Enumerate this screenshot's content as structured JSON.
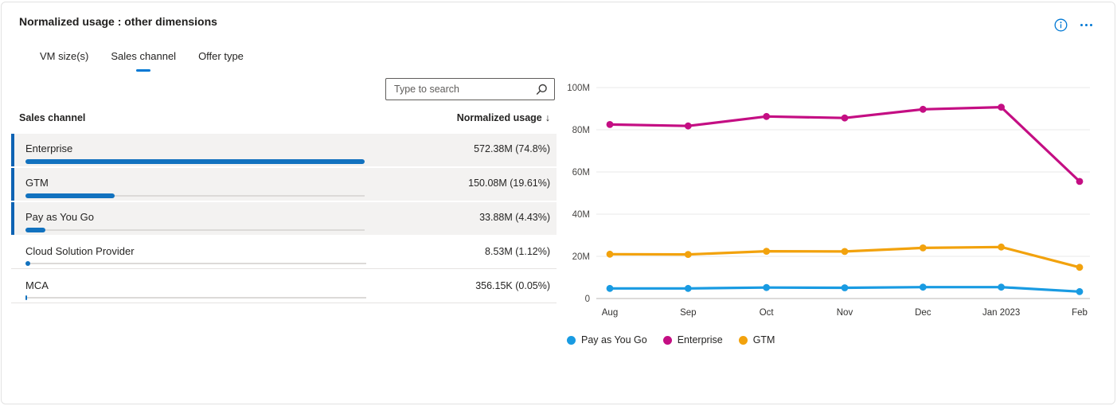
{
  "card": {
    "title": "Normalized usage : other dimensions"
  },
  "header_icons": {
    "info": "info-icon",
    "more": "more-options-icon"
  },
  "tabs": {
    "items": [
      {
        "label": "VM size(s)",
        "selected": false
      },
      {
        "label": "Sales channel",
        "selected": true
      },
      {
        "label": "Offer type",
        "selected": false
      }
    ]
  },
  "search": {
    "placeholder": "Type to search"
  },
  "table": {
    "columns": {
      "dimension": "Sales channel",
      "metric": "Normalized usage",
      "sort_indicator": "↓"
    },
    "max_value_m": 572.38,
    "rows": [
      {
        "label": "Enterprise",
        "value_text": "572.38M (74.8%)",
        "value_m": 572.38,
        "selected": true
      },
      {
        "label": "GTM",
        "value_text": "150.08M (19.61%)",
        "value_m": 150.08,
        "selected": true
      },
      {
        "label": "Pay as You Go",
        "value_text": "33.88M (4.43%)",
        "value_m": 33.88,
        "selected": true
      },
      {
        "label": "Cloud Solution Provider",
        "value_text": "8.53M (1.12%)",
        "value_m": 8.53,
        "selected": false
      },
      {
        "label": "MCA",
        "value_text": "356.15K (0.05%)",
        "value_m": 0.35615,
        "selected": false
      }
    ]
  },
  "chart_data": {
    "type": "line",
    "title": "",
    "xlabel": "",
    "ylabel": "",
    "x": [
      "Aug",
      "Sep",
      "Oct",
      "Nov",
      "Dec",
      "Jan 2023",
      "Feb"
    ],
    "series": [
      {
        "name": "Pay as You Go",
        "color": "#199BE2",
        "values": [
          4.8,
          4.8,
          5.2,
          5.1,
          5.4,
          5.4,
          3.3
        ]
      },
      {
        "name": "Enterprise",
        "color": "#C40E83",
        "values": [
          82.5,
          81.8,
          86.3,
          85.6,
          89.7,
          90.7,
          55.5
        ]
      },
      {
        "name": "GTM",
        "color": "#F2A20D",
        "values": [
          21.0,
          20.9,
          22.4,
          22.3,
          24.0,
          24.4,
          14.8
        ]
      }
    ],
    "ylim": [
      0,
      100
    ],
    "yticks": [
      {
        "v": 0,
        "label": "0"
      },
      {
        "v": 20,
        "label": "20M"
      },
      {
        "v": 40,
        "label": "40M"
      },
      {
        "v": 60,
        "label": "60M"
      },
      {
        "v": 80,
        "label": "80M"
      },
      {
        "v": 100,
        "label": "100M"
      }
    ],
    "grid": true,
    "legend_position": "bottom-left"
  },
  "colors": {
    "accent": "#0078D4",
    "bar_fill": "#1272BF",
    "row_accent": "#0E63B3",
    "gridline": "#e8e8e8",
    "zero_line": "#b9b7b5"
  }
}
